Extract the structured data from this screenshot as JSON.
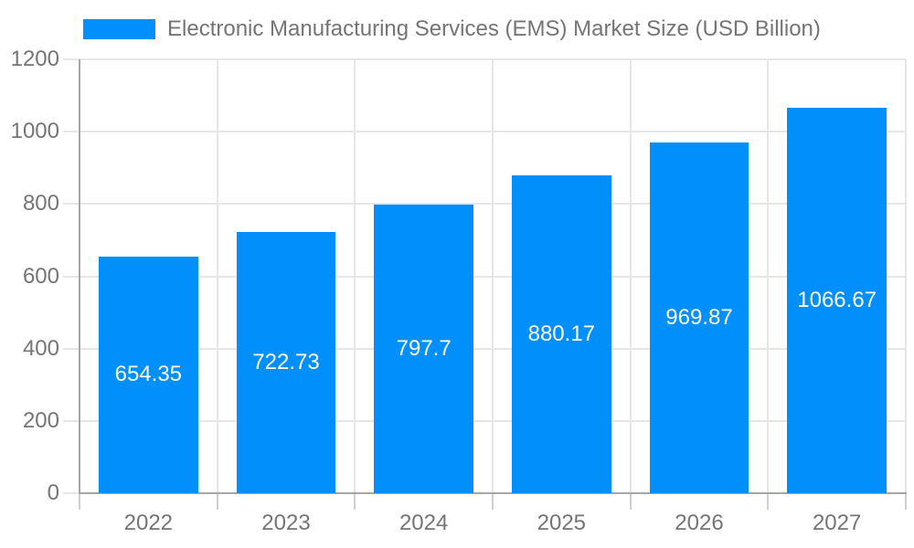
{
  "legend": {
    "position": "top",
    "items": [
      {
        "label": "Electronic Manufacturing Services (EMS) Market Size (USD Billion)",
        "color": "#008FFB"
      }
    ]
  },
  "chart_data": {
    "type": "bar",
    "title": "Electronic Manufacturing Services (EMS) Market Size (USD Billion)",
    "categories": [
      "2022",
      "2023",
      "2024",
      "2025",
      "2026",
      "2027"
    ],
    "series": [
      {
        "name": "Electronic Manufacturing Services (EMS) Market Size (USD Billion)",
        "values": [
          654.35,
          722.73,
          797.7,
          880.17,
          969.87,
          1066.67
        ]
      }
    ],
    "value_labels": [
      "654.35",
      "722.73",
      "797.7",
      "880.17",
      "969.87",
      "1066.67"
    ],
    "xlabel": "",
    "ylabel": "",
    "ylim": [
      0,
      1200
    ],
    "yticks": [
      0,
      200,
      400,
      600,
      800,
      1000,
      1200
    ],
    "ytick_labels": [
      "0",
      "200",
      "400",
      "600",
      "800",
      "1000",
      "1200"
    ],
    "grid": true,
    "legend_position": "top",
    "data_labels_position": "center-inside",
    "colors": {
      "bar": "#008FFB",
      "data_label": "#FFFFFF",
      "axis_text": "#757575",
      "grid_line": "#E6E6E6",
      "axis_line": "#A6A6A6",
      "x_tick": "#CFCFCF",
      "y_tick": "#E6E6E6",
      "background": "#FFFFFF"
    }
  }
}
